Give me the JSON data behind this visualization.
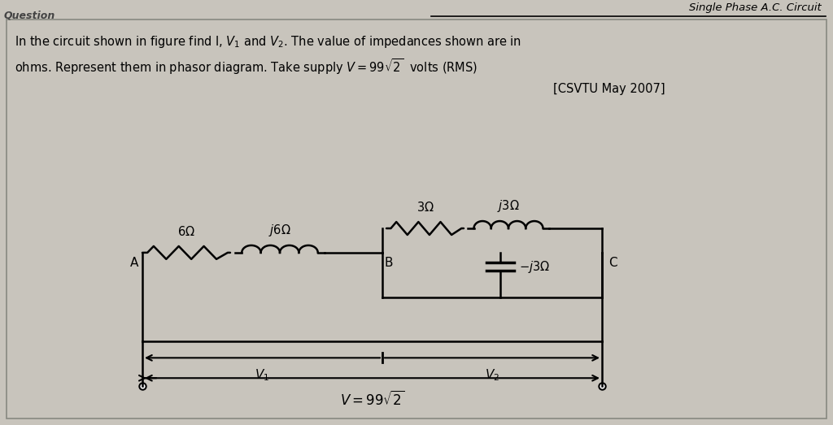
{
  "header_text": "Single Phase A.C. Circuit",
  "citation": "[CSVTU May 2007]",
  "bg_color": "#c8c4bc",
  "text_color": "#111111",
  "wire_color": "#000000",
  "fig_width": 10.24,
  "fig_height": 5.23,
  "dpi": 100,
  "line1": "In the circuit shown in figure find I, $V_1$ and $V_2$. The value of impedances shown are in",
  "line2": "ohms. Represent them in phasor diagram. Take supply $V = 99\\sqrt{2}$  volts (RMS)",
  "label_6R": "$6\\Omega$",
  "label_j6": "$j6\\Omega$",
  "label_3R": "$3\\Omega$",
  "label_j3": "$j3\\Omega$",
  "label_mj3": "$-j3\\Omega$",
  "label_V1": "$V_1$",
  "label_V2": "$V_2$",
  "label_V": "$V = 99\\sqrt{2}$",
  "label_A": "A",
  "label_B": "B",
  "label_C": "C"
}
